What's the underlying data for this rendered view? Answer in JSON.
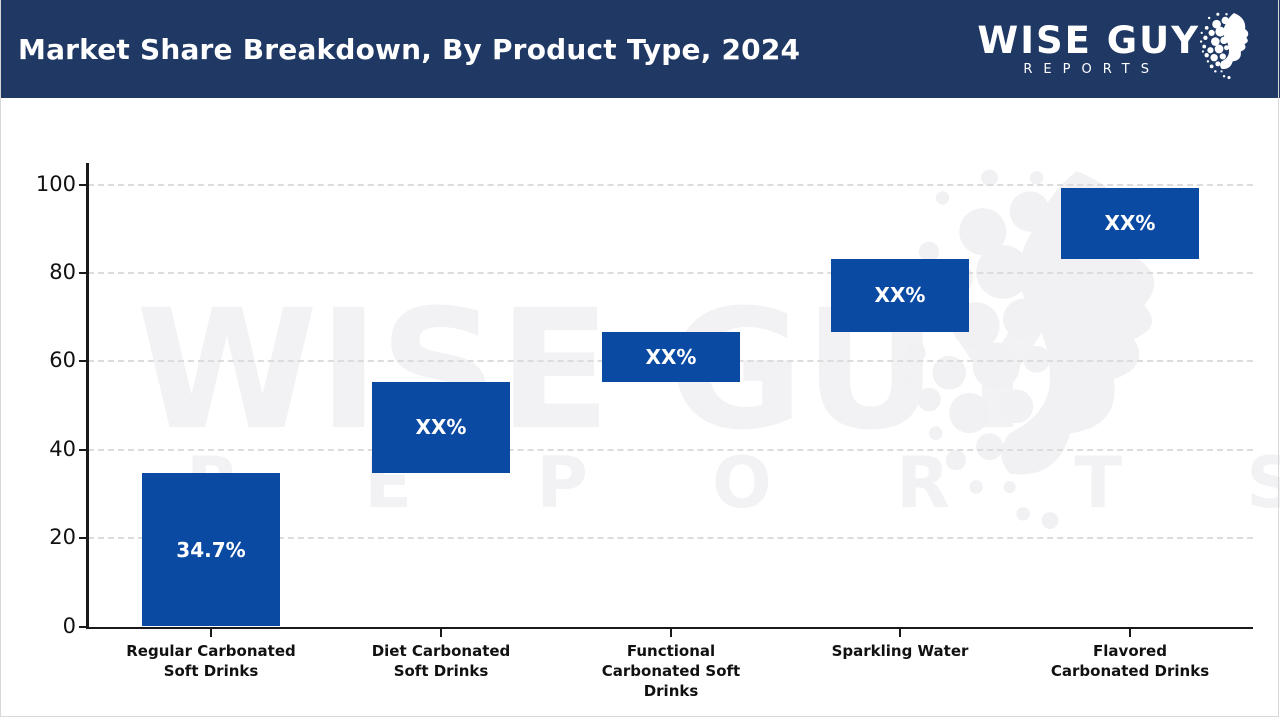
{
  "header": {
    "bg_color": "#1f3864",
    "title": "Market Share Breakdown, By Product Type, 2024",
    "logo": {
      "name_line": "WISE GUY",
      "sub_line": "REPORTS"
    }
  },
  "watermark": {
    "name_line": "WISE GUY",
    "sub_line": "R E P O R T S"
  },
  "chart_data": {
    "type": "bar",
    "variant": "waterfall",
    "title": "Market Share Breakdown, By Product Type, 2024",
    "xlabel": "",
    "ylabel": "",
    "ylim": [
      0,
      100
    ],
    "yticks": [
      0,
      20,
      40,
      60,
      80,
      100
    ],
    "grid": "horizontal-dashed",
    "legend": "none",
    "bar_color": "#0b4aa2",
    "bar_label_color": "#ffffff",
    "categories": [
      "Regular Carbonated Soft Drinks",
      "Diet Carbonated Soft Drinks",
      "Functional Carbonated Soft Drinks",
      "Sparkling Water",
      "Flavored Carbonated Drinks"
    ],
    "category_lines": [
      [
        "Regular Carbonated",
        "Soft Drinks"
      ],
      [
        "Diet Carbonated",
        "Soft Drinks"
      ],
      [
        "Functional",
        "Carbonated Soft",
        "Drinks"
      ],
      [
        "Sparkling Water"
      ],
      [
        "Flavored",
        "Carbonated Drinks"
      ]
    ],
    "segments": [
      {
        "start": 0,
        "end": 34.7
      },
      {
        "start": 34.7,
        "end": 55.4
      },
      {
        "start": 55.4,
        "end": 66.7
      },
      {
        "start": 66.7,
        "end": 83.2
      },
      {
        "start": 83.2,
        "end": 99.3
      }
    ],
    "value_labels": [
      "34.7%",
      "XX%",
      "XX%",
      "XX%",
      "XX%"
    ]
  }
}
